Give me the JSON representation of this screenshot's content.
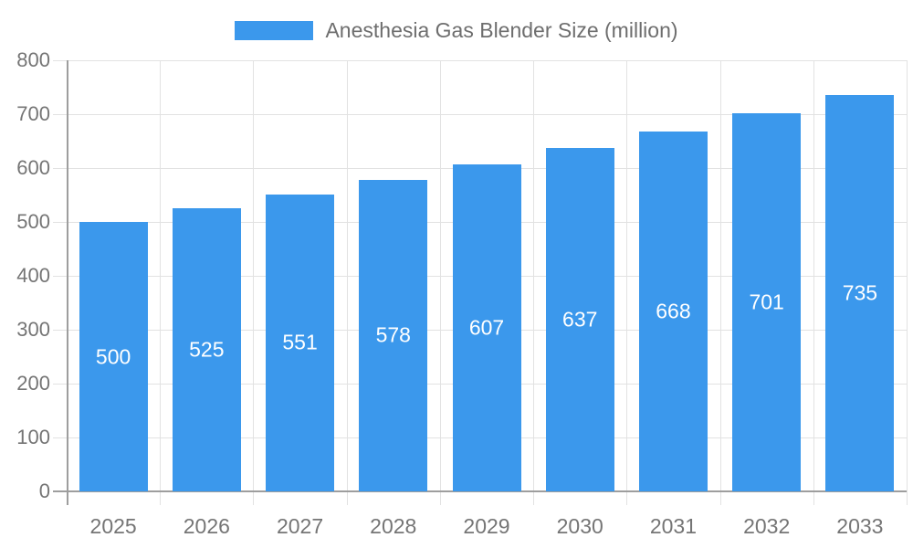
{
  "colors": {
    "bar": "#3b98ec",
    "grid": "#e2e2e2",
    "axis": "#9e9e9e",
    "axis_text": "#757575",
    "legend_text": "#6e6e6e",
    "bar_label_text": "#ffffff"
  },
  "legend": {
    "label": "Anesthesia Gas Blender Size (million)"
  },
  "chart_data": {
    "type": "bar",
    "title": "Anesthesia Gas Blender Size (million)",
    "categories": [
      "2025",
      "2026",
      "2027",
      "2028",
      "2029",
      "2030",
      "2031",
      "2032",
      "2033"
    ],
    "values": [
      500,
      525,
      551,
      578,
      607,
      637,
      668,
      701,
      735
    ],
    "xlabel": "",
    "ylabel": "",
    "ylim": [
      0,
      800
    ],
    "ytick_step": 100,
    "ytick_labels": [
      "0",
      "100",
      "200",
      "300",
      "400",
      "500",
      "600",
      "700",
      "800"
    ],
    "grid": true,
    "legend_position": "top",
    "bar_labels_inside": true
  }
}
